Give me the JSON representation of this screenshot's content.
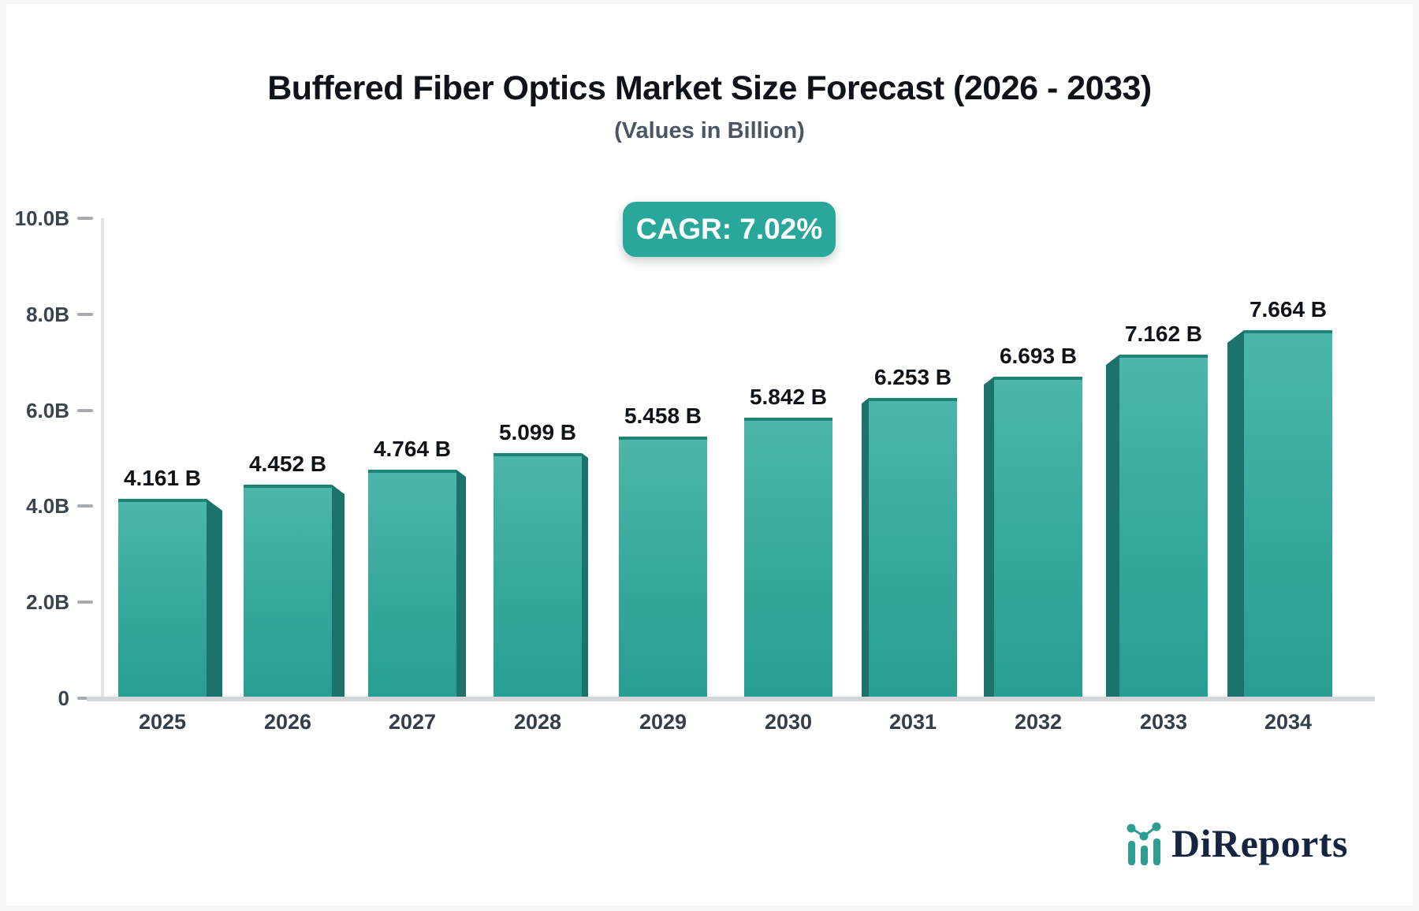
{
  "header": {
    "title": "Buffered Fiber Optics Market Size Forecast (2026 - 2033)",
    "subtitle": "(Values in Billion)",
    "cagr_badge": "CAGR: 7.02%"
  },
  "chart_data": {
    "type": "bar",
    "title": "Buffered Fiber Optics Market Size Forecast (2026 - 2033)",
    "subtitle": "(Values in Billion)",
    "cagr_percent": 7.02,
    "categories": [
      "2025",
      "2026",
      "2027",
      "2028",
      "2029",
      "2030",
      "2031",
      "2032",
      "2033",
      "2034"
    ],
    "values": [
      4.161,
      4.452,
      4.764,
      5.099,
      5.458,
      5.842,
      6.253,
      6.693,
      7.162,
      7.664
    ],
    "value_labels": [
      "4.161 B",
      "4.452 B",
      "4.764 B",
      "5.099 B",
      "5.458 B",
      "5.842 B",
      "6.253 B",
      "6.693 B",
      "7.162 B",
      "7.664 B"
    ],
    "unit": "Billion",
    "xlabel": "",
    "ylabel": "",
    "ylim": [
      0,
      10
    ],
    "yticks": [
      "10.0B",
      "8.0B",
      "6.0B",
      "4.0B",
      "2.0B",
      "0"
    ],
    "grid": false,
    "legend": false,
    "bar_style": "3d-perspective-extrude"
  },
  "colors": {
    "accent_teal": "#2aa79b",
    "badge_bg": "#2aa79b",
    "badge_text": "#ffffff",
    "bar_face_top": "#4db6aa",
    "bar_face_mid": "#35a89b",
    "bar_face_bottom": "#289e92",
    "bar_cap": "#1f8478",
    "bar_side": "#1c736b",
    "axis_line": "#d2d5d9",
    "tick_text": "#39444f",
    "value_text": "#0e1319",
    "logo_navy": "#152440",
    "logo_teal": "#2d9c92"
  },
  "logo": {
    "text": "DiReports"
  }
}
